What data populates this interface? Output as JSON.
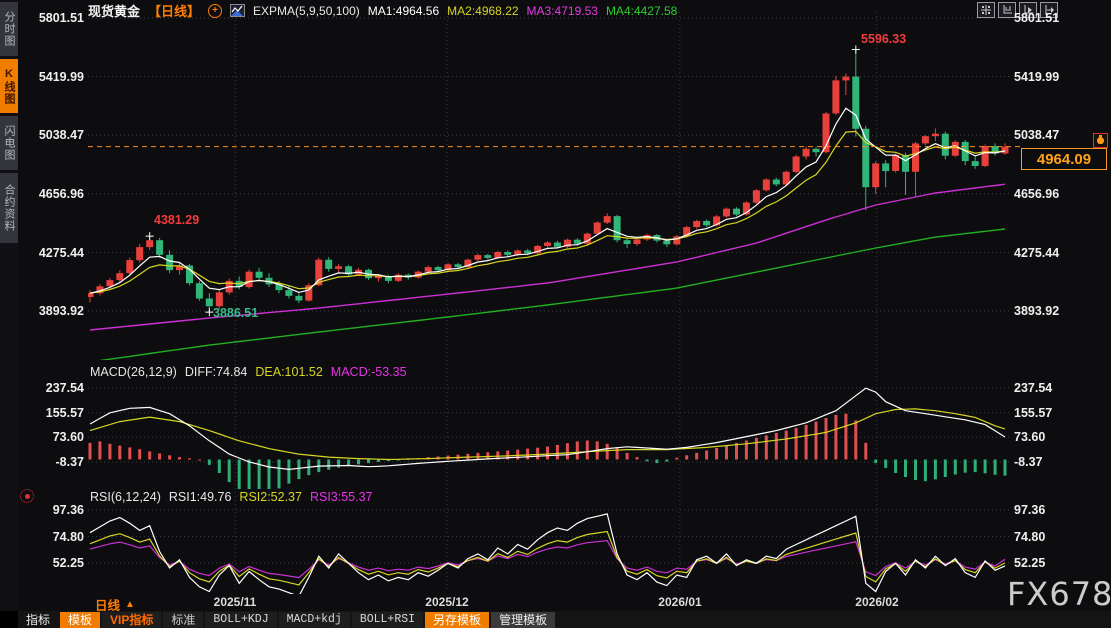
{
  "topbar": {
    "symbol": "现货黄金",
    "period_tag": "【日线】",
    "indicator_label": "EXPMA(5,9,50,100)",
    "ma1_label": "MA1:4964.56",
    "ma2_label": "MA2:4968.22",
    "ma3_label": "MA3:4719.53",
    "ma4_label": "MA4:4427.58"
  },
  "sidebar": {
    "items": [
      {
        "label": "分时图",
        "active": false
      },
      {
        "label": "K线图",
        "active": true
      },
      {
        "label": "闪电图",
        "active": false
      },
      {
        "label": "合约资料",
        "active": false
      }
    ]
  },
  "price_axis_labels": [
    "5801.51",
    "5419.99",
    "5038.47",
    "4656.96",
    "4275.44",
    "3893.92"
  ],
  "macd_axis_labels": [
    "237.54",
    "155.57",
    "73.60",
    "-8.37"
  ],
  "rsi_axis_labels": [
    "97.36",
    "74.80",
    "52.25"
  ],
  "x_axis_labels": [
    "2025/11",
    "2025/12",
    "2026/01",
    "2026/02"
  ],
  "macd_header": {
    "name": "MACD(26,12,9)",
    "diff": "DIFF:74.84",
    "dea": "DEA:101.52",
    "macd": "MACD:-53.35"
  },
  "rsi_header": {
    "name": "RSI(6,12,24)",
    "rsi1": "RSI1:49.76",
    "rsi2": "RSI2:52.37",
    "rsi3": "RSI3:55.37"
  },
  "annotations": {
    "high1": "4381.29",
    "low1": "3886.51",
    "high2": "5596.33",
    "last_price": "4964.09"
  },
  "bottom_bar": {
    "period_label": "日线",
    "tabs": [
      {
        "label": "指标"
      },
      {
        "label": "模板"
      },
      {
        "label": "VIP指标"
      },
      {
        "label": "标准"
      },
      {
        "label": "BOLL+KDJ"
      },
      {
        "label": "MACD+kdj"
      },
      {
        "label": "BOLL+RSI"
      },
      {
        "label": "另存模板"
      },
      {
        "label": "管理模板"
      }
    ]
  },
  "watermark": "FX678",
  "colors": {
    "up": "#e8413c",
    "down": "#31b578",
    "ma1": "#ffffff",
    "ma2": "#d6d621",
    "ma3": "#cc2fd4",
    "ma4": "#21b021",
    "hist_up": "#e05050",
    "hist_down": "#2fae78",
    "accent": "#f07c00",
    "last_price_line": "#ff8f1f",
    "grid": "#3a3a44",
    "rsi1": "#ffffff",
    "rsi2": "#d6d621",
    "rsi3": "#cc2fd4",
    "diff": "#ffffff",
    "dea": "#d6d621"
  },
  "chart_data": {
    "type": "candlestick",
    "title": "现货黄金 日线",
    "price_axis": {
      "max": 5801.51,
      "min": 3893.92,
      "ticks": [
        5801.51,
        5419.99,
        5038.47,
        4656.96,
        4275.44,
        3893.92
      ]
    },
    "x_ticks": [
      {
        "label": "2025/11",
        "index": 14.6
      },
      {
        "label": "2025/12",
        "index": 35.9
      },
      {
        "label": "2026/01",
        "index": 59.3
      },
      {
        "label": "2026/02",
        "index": 79.1
      }
    ],
    "last_price": 4964.09,
    "high_label": {
      "index": 6,
      "value": 4381.29
    },
    "low_label": {
      "index": 12,
      "value": 3886.51
    },
    "peak_label": {
      "index": 77,
      "value": 5596.33
    },
    "candles": [
      [
        3985,
        4030,
        3950,
        4010
      ],
      [
        4010,
        4070,
        3995,
        4055
      ],
      [
        4055,
        4110,
        4040,
        4095
      ],
      [
        4095,
        4160,
        4080,
        4140
      ],
      [
        4140,
        4240,
        4120,
        4225
      ],
      [
        4225,
        4330,
        4210,
        4310
      ],
      [
        4310,
        4381.29,
        4290,
        4355
      ],
      [
        4355,
        4370,
        4240,
        4260
      ],
      [
        4260,
        4290,
        4140,
        4160
      ],
      [
        4160,
        4210,
        4130,
        4190
      ],
      [
        4190,
        4200,
        4060,
        4075
      ],
      [
        4075,
        4090,
        3960,
        3975
      ],
      [
        3975,
        4010,
        3886.51,
        3925
      ],
      [
        3925,
        4030,
        3905,
        4015
      ],
      [
        4015,
        4105,
        4000,
        4090
      ],
      [
        4090,
        4120,
        4035,
        4050
      ],
      [
        4050,
        4165,
        4040,
        4150
      ],
      [
        4150,
        4175,
        4095,
        4110
      ],
      [
        4110,
        4140,
        4050,
        4068
      ],
      [
        4068,
        4090,
        4010,
        4030
      ],
      [
        4030,
        4060,
        3975,
        3992
      ],
      [
        3992,
        4010,
        3945,
        3962
      ],
      [
        3962,
        4075,
        3955,
        4062
      ],
      [
        4062,
        4240,
        4055,
        4228
      ],
      [
        4228,
        4245,
        4150,
        4168
      ],
      [
        4168,
        4200,
        4140,
        4185
      ],
      [
        4185,
        4195,
        4115,
        4132
      ],
      [
        4132,
        4175,
        4120,
        4162
      ],
      [
        4162,
        4170,
        4095,
        4108
      ],
      [
        4108,
        4135,
        4085,
        4122
      ],
      [
        4122,
        4130,
        4075,
        4090
      ],
      [
        4090,
        4140,
        4082,
        4130
      ],
      [
        4130,
        4138,
        4098,
        4112
      ],
      [
        4112,
        4158,
        4105,
        4150
      ],
      [
        4150,
        4190,
        4140,
        4180
      ],
      [
        4180,
        4188,
        4148,
        4160
      ],
      [
        4160,
        4205,
        4152,
        4198
      ],
      [
        4198,
        4208,
        4168,
        4180
      ],
      [
        4180,
        4235,
        4172,
        4228
      ],
      [
        4228,
        4268,
        4220,
        4258
      ],
      [
        4258,
        4265,
        4228,
        4240
      ],
      [
        4240,
        4285,
        4232,
        4278
      ],
      [
        4278,
        4288,
        4248,
        4260
      ],
      [
        4260,
        4295,
        4252,
        4288
      ],
      [
        4288,
        4298,
        4258,
        4270
      ],
      [
        4270,
        4325,
        4262,
        4318
      ],
      [
        4318,
        4348,
        4308,
        4340
      ],
      [
        4340,
        4350,
        4300,
        4312
      ],
      [
        4312,
        4365,
        4305,
        4358
      ],
      [
        4358,
        4368,
        4320,
        4332
      ],
      [
        4332,
        4405,
        4325,
        4398
      ],
      [
        4398,
        4478,
        4390,
        4470
      ],
      [
        4470,
        4530,
        4460,
        4512
      ],
      [
        4512,
        4520,
        4340,
        4355
      ],
      [
        4355,
        4370,
        4305,
        4330
      ],
      [
        4330,
        4368,
        4318,
        4360
      ],
      [
        4360,
        4395,
        4350,
        4388
      ],
      [
        4388,
        4395,
        4340,
        4352
      ],
      [
        4352,
        4362,
        4310,
        4328
      ],
      [
        4328,
        4388,
        4320,
        4380
      ],
      [
        4380,
        4448,
        4372,
        4440
      ],
      [
        4440,
        4488,
        4430,
        4480
      ],
      [
        4480,
        4490,
        4440,
        4452
      ],
      [
        4452,
        4518,
        4445,
        4510
      ],
      [
        4510,
        4568,
        4502,
        4560
      ],
      [
        4560,
        4570,
        4510,
        4522
      ],
      [
        4522,
        4608,
        4515,
        4600
      ],
      [
        4600,
        4688,
        4592,
        4680
      ],
      [
        4680,
        4758,
        4672,
        4750
      ],
      [
        4750,
        4762,
        4705,
        4718
      ],
      [
        4718,
        4808,
        4710,
        4800
      ],
      [
        4800,
        4910,
        4792,
        4900
      ],
      [
        4900,
        4965,
        4880,
        4950
      ],
      [
        4950,
        4960,
        4900,
        4928
      ],
      [
        4928,
        5190,
        4920,
        5180
      ],
      [
        5180,
        5425,
        5170,
        5395
      ],
      [
        5395,
        5440,
        5300,
        5420
      ],
      [
        5420,
        5596.33,
        5030,
        5080
      ],
      [
        5080,
        5100,
        4550,
        4700
      ],
      [
        4700,
        4870,
        4655,
        4855
      ],
      [
        4855,
        4875,
        4700,
        4805
      ],
      [
        4805,
        4918,
        4795,
        4910
      ],
      [
        4910,
        4925,
        4650,
        4800
      ],
      [
        4800,
        4995,
        4636,
        4985
      ],
      [
        4985,
        5040,
        4975,
        5032
      ],
      [
        5032,
        5082,
        5000,
        5048
      ],
      [
        5048,
        5062,
        4880,
        4905
      ],
      [
        4905,
        5005,
        4895,
        4995
      ],
      [
        4995,
        5008,
        4843,
        4870
      ],
      [
        4870,
        4905,
        4820,
        4838
      ],
      [
        4838,
        4978,
        4830,
        4968
      ],
      [
        4968,
        4985,
        4905,
        4920
      ],
      [
        4920,
        4985,
        4912,
        4964.09
      ]
    ],
    "expma": {
      "periods": [
        5,
        9,
        50,
        100
      ],
      "last": [
        4964.56,
        4968.22,
        4719.53,
        4427.58
      ],
      "ma3_anchors": [
        [
          0,
          3770
        ],
        [
          12,
          3848
        ],
        [
          23,
          3913
        ],
        [
          36,
          4004
        ],
        [
          46,
          4076
        ],
        [
          59,
          4213
        ],
        [
          67,
          4336
        ],
        [
          74,
          4486
        ],
        [
          79,
          4584
        ],
        [
          85,
          4662
        ],
        [
          92,
          4719.53
        ]
      ],
      "ma4_anchors": [
        [
          0,
          3562
        ],
        [
          12,
          3672
        ],
        [
          23,
          3757
        ],
        [
          36,
          3855
        ],
        [
          46,
          3933
        ],
        [
          59,
          4043
        ],
        [
          67,
          4147
        ],
        [
          74,
          4239
        ],
        [
          79,
          4304
        ],
        [
          85,
          4375
        ],
        [
          92,
          4427.58
        ]
      ]
    },
    "macd": {
      "params": [
        26,
        12,
        9
      ],
      "last": {
        "diff": 74.84,
        "dea": 101.52,
        "macd": -53.35
      },
      "ticks": [
        237.54,
        155.57,
        73.6,
        -8.37
      ],
      "hist": [
        55,
        60,
        52,
        46,
        40,
        34,
        27,
        20,
        14,
        8,
        4,
        0,
        -18,
        -45,
        -75,
        -100,
        -115,
        -120,
        -110,
        -96,
        -80,
        -65,
        -52,
        -42,
        -34,
        -27,
        -21,
        -16,
        -12,
        -8,
        -5,
        -2,
        2,
        5,
        8,
        10,
        13,
        16,
        19,
        22,
        24,
        27,
        30,
        33,
        36,
        39,
        43,
        48,
        54,
        60,
        63,
        60,
        52,
        40,
        22,
        8,
        -6,
        -12,
        -7,
        6,
        14,
        22,
        30,
        38,
        46,
        55,
        63,
        72,
        80,
        88,
        96,
        105,
        115,
        126,
        138,
        148,
        152,
        130,
        55,
        -12,
        -28,
        -45,
        -58,
        -68,
        -72,
        -66,
        -58,
        -50,
        -44,
        -42,
        -46,
        -51,
        -53.35
      ],
      "diff_anchors": [
        [
          0,
          118
        ],
        [
          2,
          155
        ],
        [
          4,
          170
        ],
        [
          6,
          173
        ],
        [
          8,
          152
        ],
        [
          10,
          112
        ],
        [
          12,
          62
        ],
        [
          14,
          18
        ],
        [
          16,
          -8
        ],
        [
          18,
          -25
        ],
        [
          20,
          -33
        ],
        [
          23,
          -22
        ],
        [
          26,
          -20
        ],
        [
          28,
          -24
        ],
        [
          30,
          -21
        ],
        [
          33,
          -13
        ],
        [
          36,
          -6
        ],
        [
          40,
          2
        ],
        [
          44,
          9
        ],
        [
          48,
          16
        ],
        [
          52,
          36
        ],
        [
          54,
          42
        ],
        [
          56,
          38
        ],
        [
          58,
          34
        ],
        [
          60,
          40
        ],
        [
          63,
          56
        ],
        [
          66,
          76
        ],
        [
          69,
          96
        ],
        [
          72,
          122
        ],
        [
          75,
          162
        ],
        [
          77,
          212
        ],
        [
          78,
          237
        ],
        [
          79,
          224
        ],
        [
          80,
          192
        ],
        [
          82,
          162
        ],
        [
          84,
          152
        ],
        [
          86,
          142
        ],
        [
          88,
          132
        ],
        [
          90,
          116
        ],
        [
          92,
          74.84
        ]
      ],
      "dea_anchors": [
        [
          0,
          96
        ],
        [
          3,
          126
        ],
        [
          6,
          141
        ],
        [
          9,
          126
        ],
        [
          12,
          96
        ],
        [
          15,
          62
        ],
        [
          18,
          36
        ],
        [
          21,
          18
        ],
        [
          24,
          8
        ],
        [
          27,
          3
        ],
        [
          30,
          0
        ],
        [
          34,
          3
        ],
        [
          38,
          8
        ],
        [
          42,
          12
        ],
        [
          46,
          18
        ],
        [
          50,
          26
        ],
        [
          54,
          33
        ],
        [
          58,
          33
        ],
        [
          62,
          40
        ],
        [
          66,
          52
        ],
        [
          70,
          68
        ],
        [
          74,
          90
        ],
        [
          77,
          122
        ],
        [
          79,
          152
        ],
        [
          81,
          166
        ],
        [
          83,
          168
        ],
        [
          85,
          162
        ],
        [
          87,
          152
        ],
        [
          89,
          140
        ],
        [
          91,
          112
        ],
        [
          92,
          101.52
        ]
      ]
    },
    "rsi": {
      "params": [
        6,
        12,
        24
      ],
      "last": [
        49.76,
        52.37,
        55.37
      ],
      "ticks": [
        97.36,
        74.8,
        52.25
      ],
      "rsi1": [
        78,
        83,
        88,
        91,
        86,
        80,
        84,
        62,
        48,
        55,
        40,
        32,
        28,
        42,
        50,
        35,
        45,
        38,
        32,
        30,
        27,
        24,
        40,
        58,
        48,
        60,
        52,
        44,
        38,
        42,
        37,
        40,
        38,
        44,
        41,
        46,
        52,
        48,
        56,
        60,
        55,
        65,
        60,
        68,
        64,
        72,
        78,
        82,
        80,
        86,
        90,
        92,
        94,
        60,
        42,
        38,
        44,
        36,
        33,
        42,
        40,
        55,
        58,
        52,
        60,
        50,
        55,
        52,
        58,
        56,
        64,
        68,
        72,
        76,
        80,
        84,
        88,
        92,
        35,
        28,
        45,
        52,
        42,
        55,
        48,
        58,
        50,
        56,
        44,
        40,
        54,
        46,
        49.76
      ],
      "rsi2": [
        68.7,
        71.9,
        75.2,
        77.2,
        73.9,
        70,
        72.6,
        58.3,
        49.2,
        53.8,
        44,
        38.8,
        36.2,
        45.3,
        50.5,
        40.8,
        47.2,
        42.7,
        38.8,
        37.5,
        35.6,
        33.6,
        44,
        55.7,
        49.2,
        57,
        51.8,
        46.6,
        42.7,
        45.3,
        42.1,
        44,
        42.7,
        46.6,
        44.6,
        47.9,
        51.8,
        49.2,
        54.4,
        57,
        53.8,
        60.2,
        57,
        62.2,
        59.6,
        64.8,
        68.7,
        71.3,
        70,
        73.9,
        76.5,
        77.8,
        79.1,
        57,
        45.3,
        42.7,
        46.6,
        41.4,
        39.5,
        45.3,
        44,
        53.8,
        55.7,
        51.8,
        57,
        50.5,
        53.8,
        51.8,
        55.7,
        54.4,
        59.6,
        62.2,
        64.8,
        67.4,
        70,
        72.6,
        75.2,
        77.8,
        40.8,
        36.2,
        47.2,
        51.8,
        45.3,
        53.8,
        49.2,
        55.7,
        50.5,
        54.4,
        46.6,
        44,
        53.1,
        47.9,
        52.37
      ],
      "rsi3": [
        64.1,
        66.4,
        68.6,
        70,
        67.7,
        65,
        66.8,
        56.9,
        50.6,
        53.8,
        47,
        43.4,
        41.6,
        47.9,
        51.5,
        44.8,
        49.3,
        46.1,
        43.4,
        42.5,
        41.2,
        39.8,
        47,
        55.1,
        50.6,
        56,
        52.4,
        48.8,
        46.1,
        47.9,
        45.7,
        47,
        46.1,
        48.8,
        47.5,
        49.7,
        52.4,
        50.6,
        54.2,
        56,
        53.8,
        58.3,
        56,
        59.6,
        57.8,
        61.4,
        64.1,
        65.9,
        65,
        67.7,
        69.5,
        70.4,
        71.3,
        56,
        47.9,
        46.1,
        48.8,
        45.2,
        43.9,
        47.9,
        47,
        53.8,
        55.1,
        52.4,
        56,
        51.5,
        53.8,
        52.4,
        55.1,
        54.2,
        57.8,
        59.6,
        61.4,
        63.2,
        65,
        66.8,
        68.6,
        70.4,
        44.8,
        41.6,
        49.3,
        52.4,
        47.9,
        53.8,
        50.6,
        55.1,
        51.5,
        54.2,
        48.8,
        47,
        53.3,
        49.7,
        55.37
      ]
    }
  }
}
